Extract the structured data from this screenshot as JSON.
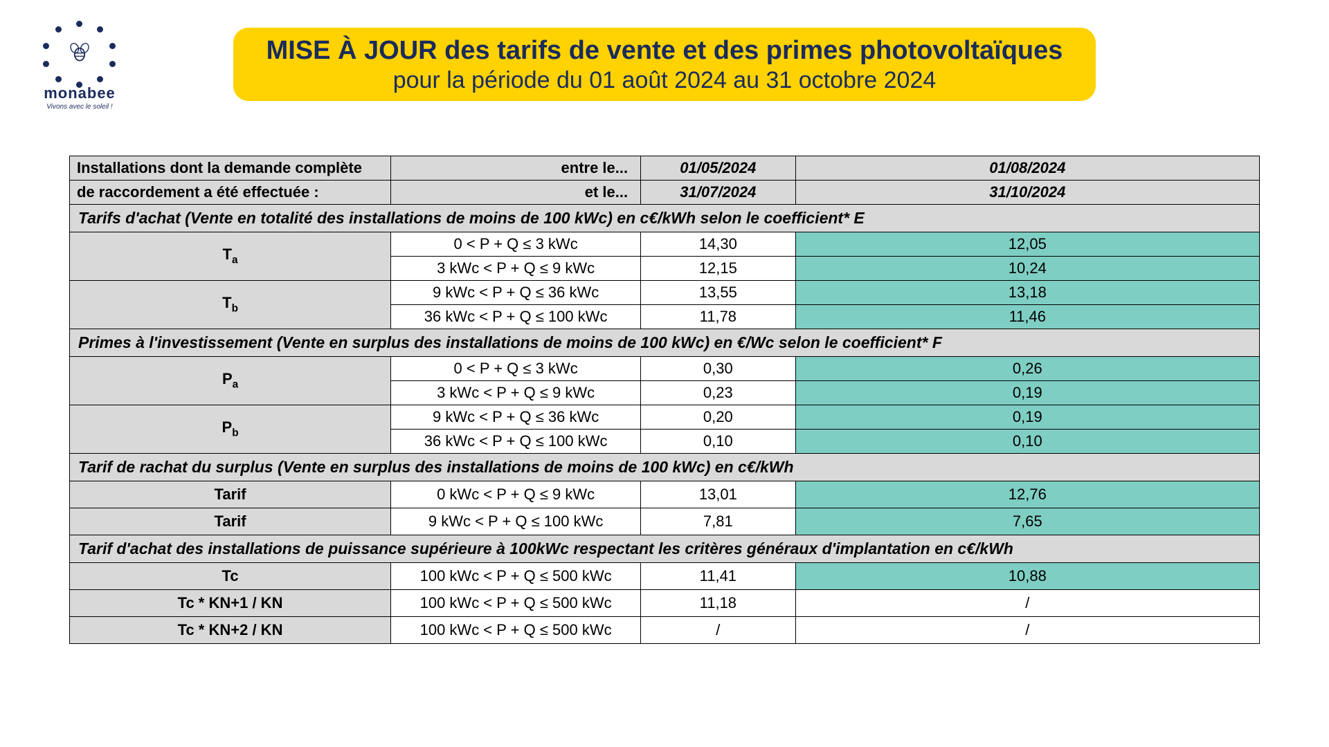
{
  "logo": {
    "brand": "monabee",
    "tagline": "Vivons avec le soleil !",
    "dot_color": "#1a2b5c",
    "bee_stroke": "#1a2b5c"
  },
  "title": {
    "main": "MISE À JOUR des tarifs de vente et des primes photovoltaïques",
    "sub": "pour la période du 01 août 2024 au 31 octobre 2024",
    "bg": "#ffd200",
    "color": "#1a2b5c"
  },
  "colors": {
    "header_bg": "#d9d9d9",
    "highlight_bg": "#7fcec3",
    "border": "#000000",
    "text": "#000000"
  },
  "header": {
    "line1_left": "Installations dont la demande complète",
    "line1_right": "entre le...",
    "line2_left": "de raccordement a été effectuée :",
    "line2_right": "et le...",
    "period1_from": "01/05/2024",
    "period1_to": "31/07/2024",
    "period2_from": "01/08/2024",
    "period2_to": "31/10/2024"
  },
  "sections": [
    {
      "title": "Tarifs d'achat (Vente en totalité des installations de moins de 100 kWc) en c€/kWh selon le coefficient* E",
      "groups": [
        {
          "label_html": "T<sub class='sub'>a</sub>",
          "rows": [
            {
              "range": "0 < P + Q ≤ 3 kWc",
              "v1": "14,30",
              "v2": "12,05",
              "hl": true
            },
            {
              "range": "3 kWc < P + Q ≤ 9 kWc",
              "v1": "12,15",
              "v2": "10,24",
              "hl": true
            }
          ]
        },
        {
          "label_html": "T<sub class='sub'>b</sub>",
          "rows": [
            {
              "range": "9 kWc < P + Q ≤ 36 kWc",
              "v1": "13,55",
              "v2": "13,18",
              "hl": true
            },
            {
              "range": "36 kWc < P + Q ≤ 100 kWc",
              "v1": "11,78",
              "v2": "11,46",
              "hl": true
            }
          ]
        }
      ]
    },
    {
      "title": "Primes à l'investissement (Vente en surplus des installations de moins de 100 kWc) en €/Wc  selon le coefficient* F",
      "groups": [
        {
          "label_html": "P<sub class='sub'>a</sub>",
          "rows": [
            {
              "range": "0 < P + Q ≤ 3 kWc",
              "v1": "0,30",
              "v2": "0,26",
              "hl": true
            },
            {
              "range": "3 kWc < P + Q ≤ 9 kWc",
              "v1": "0,23",
              "v2": "0,19",
              "hl": true
            }
          ]
        },
        {
          "label_html": "P<sub class='sub'>b</sub>",
          "rows": [
            {
              "range": "9 kWc < P + Q ≤ 36 kWc",
              "v1": "0,20",
              "v2": "0,19",
              "hl": true
            },
            {
              "range": "36 kWc < P + Q ≤ 100 kWc",
              "v1": "0,10",
              "v2": "0,10",
              "hl": true
            }
          ]
        }
      ]
    },
    {
      "title": "Tarif de rachat du surplus (Vente en surplus des installations de moins de 100 kWc) en c€/kWh",
      "groups": [
        {
          "label_html": "Tarif",
          "rows": [
            {
              "range": "0 kWc < P + Q ≤ 9 kWc",
              "v1": "13,01",
              "v2": "12,76",
              "hl": true
            }
          ]
        },
        {
          "label_html": "Tarif",
          "rows": [
            {
              "range": "9 kWc < P + Q ≤ 100 kWc",
              "v1": "7,81",
              "v2": "7,65",
              "hl": true
            }
          ]
        }
      ]
    },
    {
      "title": "Tarif d'achat des installations de puissance supérieure à 100kWc respectant les critères généraux d'implantation en c€/kWh",
      "groups": [
        {
          "label_html": "Tc",
          "rows": [
            {
              "range": "100 kWc < P + Q ≤ 500 kWc",
              "v1": "11,41",
              "v2": "10,88",
              "hl": true
            }
          ]
        },
        {
          "label_html": "Tc * K<span class='smallcap'>N+1</span> / K<span class='smallcap'>N</span>",
          "rows": [
            {
              "range": "100 kWc < P + Q ≤ 500 kWc",
              "v1": "11,18",
              "v2": "/",
              "hl": false
            }
          ]
        },
        {
          "label_html": "Tc * K<span class='smallcap'>N+2</span> / K<span class='smallcap'>N</span>",
          "rows": [
            {
              "range": "100 kWc < P + Q ≤ 500 kWc",
              "v1": "/",
              "v2": "/",
              "hl": false
            }
          ]
        }
      ]
    }
  ],
  "column_widths_pct": [
    27,
    21,
    13,
    39
  ]
}
